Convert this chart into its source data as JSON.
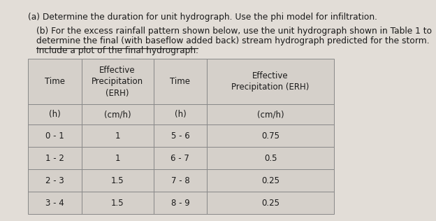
{
  "title_a": "(a) Determine the duration for unit hydrograph. Use the phi model for infiltration.",
  "title_b_line1": "(b) For the excess rainfall pattern shown below, use the unit hydrograph shown in Table 1 to",
  "title_b_line2": "determine the final (with baseflow added back) stream hydrograph predicted for the storm.",
  "title_b_line3": "Include a plot of the final hydrograph.",
  "col1_header": "Time",
  "col2_header_lines": [
    "Effective",
    "Precipitation",
    "(ERH)"
  ],
  "col3_header": "Time",
  "col4_header_lines": [
    "Effective",
    "Precipitation (ERH)"
  ],
  "col1_unit": "(h)",
  "col2_unit": "(cm/h)",
  "col3_unit": "(h)",
  "col4_unit": "(cm/h)",
  "left_time": [
    "0 - 1",
    "1 - 2",
    "2 - 3",
    "3 - 4"
  ],
  "left_erh": [
    "1",
    "1",
    "1.5",
    "1.5"
  ],
  "right_time": [
    "5 - 6",
    "6 - 7",
    "7 - 8",
    "8 - 9"
  ],
  "right_erh": [
    "0.75",
    "0.5",
    "0.25",
    "0.25"
  ],
  "bg_color": "#e2ddd7",
  "table_bg": "#d5d0ca",
  "text_color": "#1a1a1a",
  "border_color": "#888888",
  "title_fs": 8.8,
  "table_fs": 8.5
}
